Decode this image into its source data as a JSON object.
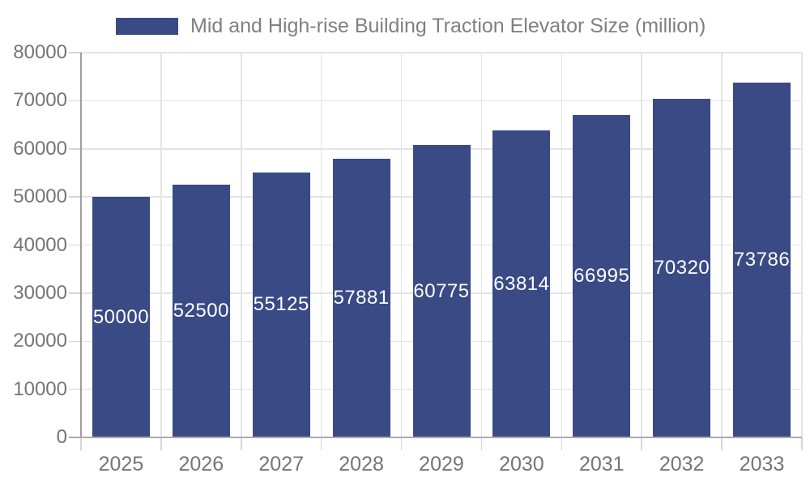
{
  "chart_data": {
    "type": "bar",
    "title": "Mid and High-rise Building Traction Elevator Size (million)",
    "categories": [
      "2025",
      "2026",
      "2027",
      "2028",
      "2029",
      "2030",
      "2031",
      "2032",
      "2033"
    ],
    "values": [
      50000,
      52500,
      55125,
      57881,
      60775,
      63814,
      66995,
      70320,
      73786
    ],
    "xlabel": "",
    "ylabel": "",
    "ylim": [
      0,
      80000
    ],
    "ytick_step": 10000,
    "grid": "on",
    "legend_position": "top",
    "value_labels": "inside-center"
  },
  "colors": {
    "bar": "#394A85",
    "value_label": "#ffffff",
    "axis_label": "#757575",
    "legend_label": "#808080",
    "gridline": "#e4e4e4",
    "tick": "#d6d6d6",
    "y_axis_line": "#9e9e9e",
    "x_axis_line": "#ababab",
    "background": "#ffffff"
  }
}
